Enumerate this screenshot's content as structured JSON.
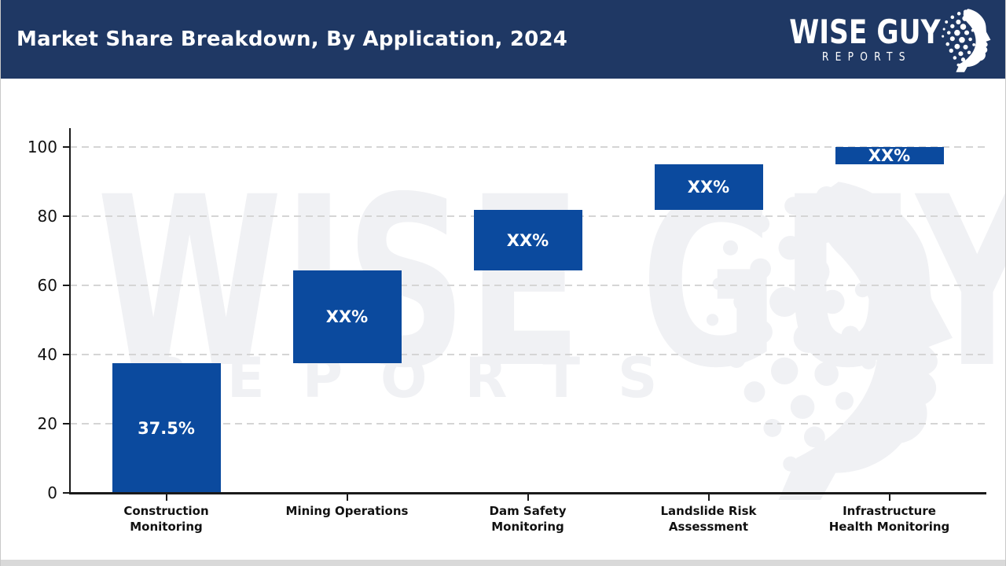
{
  "header": {
    "title": "Market Share Breakdown, By Application, 2024",
    "logo": {
      "line1": "WISE GUY",
      "line2": "REPORTS"
    }
  },
  "watermark": {
    "line1": "WISE GUY",
    "line2": "REPORTS"
  },
  "chart_data": {
    "type": "bar",
    "subtype": "waterfall",
    "title": "Market Share Breakdown, By Application, 2024",
    "categories": [
      "Construction Monitoring",
      "Mining Operations",
      "Dam Safety Monitoring",
      "Landslide Risk Assessment",
      "Infrastructure Health Monitoring"
    ],
    "category_label_lines": [
      [
        "Construction",
        "Monitoring"
      ],
      [
        "Mining Operations"
      ],
      [
        "Dam Safety",
        "Monitoring"
      ],
      [
        "Landslide Risk",
        "Assessment"
      ],
      [
        "Infrastructure",
        "Health Monitoring"
      ]
    ],
    "segments": [
      {
        "category": "Construction Monitoring",
        "start": 0,
        "end": 37.5,
        "label": "37.5%"
      },
      {
        "category": "Mining Operations",
        "start": 37.5,
        "end": 64.3,
        "label": "XX%"
      },
      {
        "category": "Dam Safety Monitoring",
        "start": 64.3,
        "end": 81.8,
        "label": "XX%"
      },
      {
        "category": "Landslide Risk Assessment",
        "start": 81.8,
        "end": 95,
        "label": "XX%"
      },
      {
        "category": "Infrastructure Health Monitoring",
        "start": 95,
        "end": 100,
        "label": "XX%"
      }
    ],
    "y_ticks": [
      0,
      20,
      40,
      60,
      80,
      100
    ],
    "ylim": [
      0,
      105
    ],
    "grid": "horizontal-dashed",
    "legend": "none",
    "colors": {
      "bar": "#0b4a9e",
      "bar_label": "#ffffff",
      "axis": "#1a1a1a",
      "grid": "#d5d5d5",
      "header_bg": "#1f3864",
      "watermark": "#f0f1f4",
      "footer_strip": "#d9d9d9"
    }
  }
}
